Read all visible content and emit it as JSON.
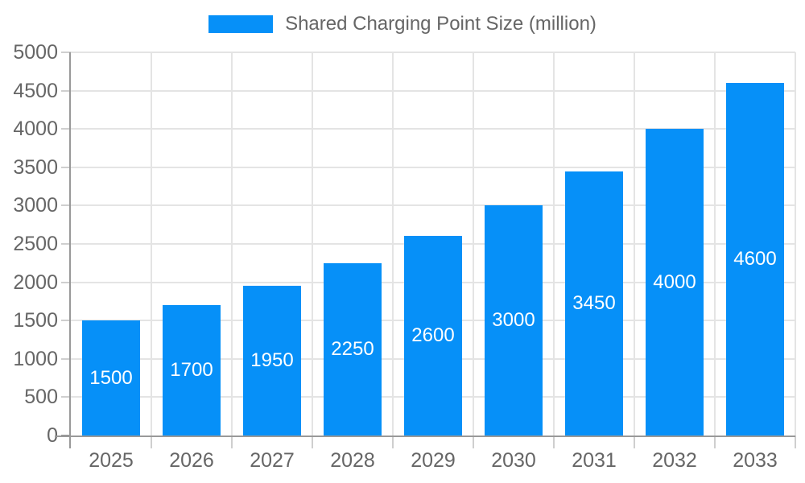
{
  "legend": {
    "label": "Shared Charging Point Size (million)"
  },
  "colors": {
    "bar": "#0690f8",
    "grid": "#e4e4e4",
    "tick": "#cfcfcf",
    "axis": "#999999",
    "text": "#666666",
    "bar_label_text": "#ffffff"
  },
  "chart_data": {
    "type": "bar",
    "title": "Shared Charging Point Size (million)",
    "series_name": "Shared Charging Point Size (million)",
    "categories": [
      "2025",
      "2026",
      "2027",
      "2028",
      "2029",
      "2030",
      "2031",
      "2032",
      "2033"
    ],
    "values": [
      1500,
      1700,
      1950,
      2250,
      2600,
      3000,
      3450,
      4000,
      4600
    ],
    "xlabel": "",
    "ylabel": "",
    "ylim": [
      0,
      5000
    ],
    "ytick_step": 500,
    "ytick_labels": [
      "0",
      "500",
      "1000",
      "1500",
      "2000",
      "2500",
      "3000",
      "3500",
      "4000",
      "4500",
      "5000"
    ],
    "grid": true,
    "legend_position": "top",
    "value_labels": "inside-center-white"
  }
}
